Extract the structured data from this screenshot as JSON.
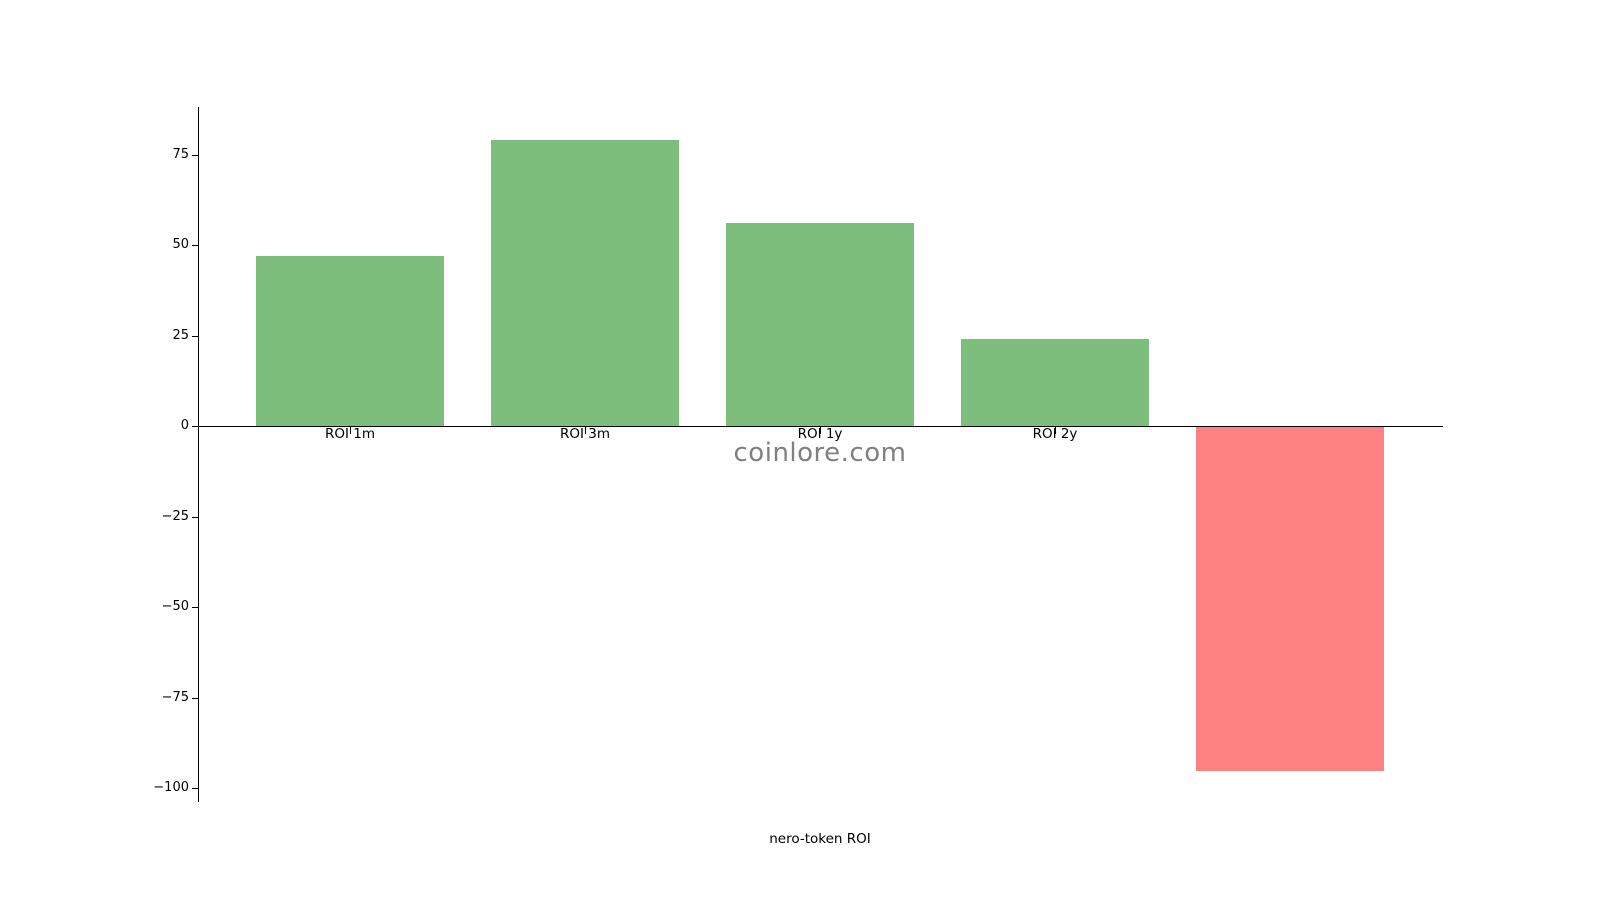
{
  "watermark": {
    "text": "coinlore.com",
    "color": "#808080"
  },
  "chart_data": {
    "type": "bar",
    "title": "nero-token ROI",
    "categories": [
      "ROI 1m",
      "ROI 3m",
      "ROI 1y",
      "ROI 2y",
      ""
    ],
    "values": [
      47,
      79,
      56,
      24,
      -95
    ],
    "positive_color": "#7dbe7d",
    "negative_color": "#fd8181",
    "y_ticks": [
      75,
      50,
      25,
      0,
      -25,
      -50,
      -75,
      -100
    ],
    "ylim": [
      -104,
      88
    ],
    "xlabel": "",
    "ylabel": "",
    "grid": false,
    "legend": false,
    "axis_color": "#000000",
    "text_color": "#000000"
  }
}
